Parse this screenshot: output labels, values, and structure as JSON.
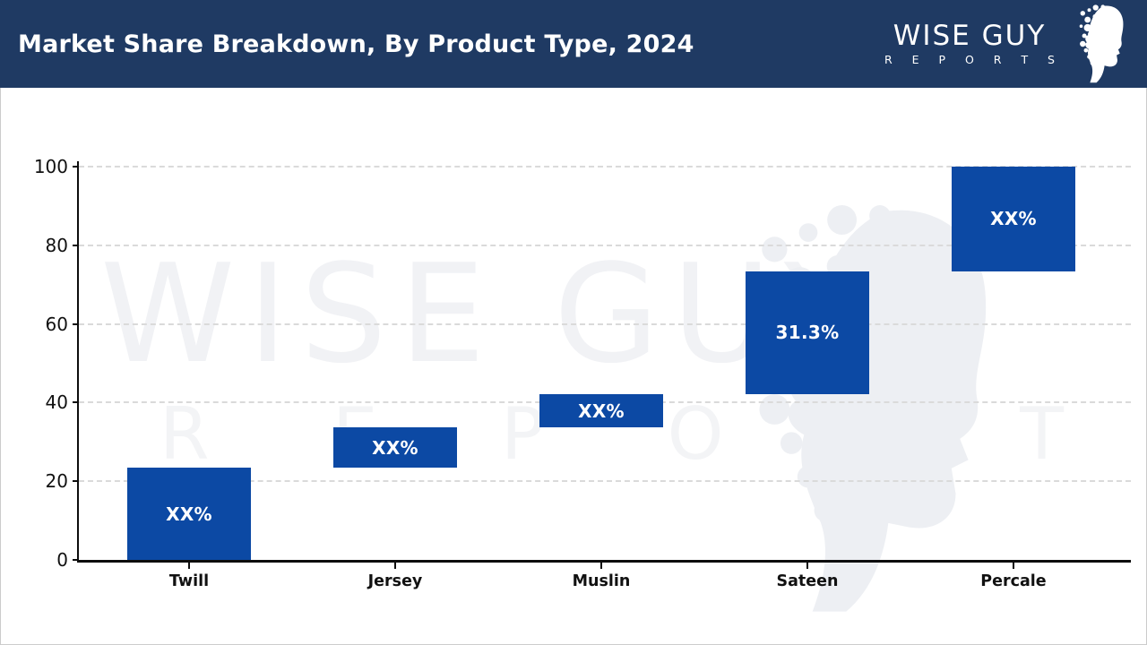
{
  "header": {
    "title": "Market Share Breakdown, By Product Type, 2024",
    "logo": {
      "line1": "WISE GUY",
      "line2": "R E P O R T S"
    }
  },
  "watermark": {
    "line1": "WISE GUY",
    "line2": "R E P O R T S"
  },
  "colors": {
    "header_bg": "#1f3a63",
    "bar_fill": "#0c49a4",
    "bar_label_text": "#ffffff",
    "gridline": "#dadada",
    "axis": "#0d0d0d",
    "watermark": "#f1f2f5"
  },
  "chart_data": {
    "type": "bar",
    "subtype": "waterfall",
    "title": "Market Share Breakdown, By Product Type, 2024",
    "categories": [
      "Twill",
      "Jersey",
      "Muslin",
      "Sateen",
      "Percale"
    ],
    "segments": [
      {
        "category": "Twill",
        "start": 0,
        "end": 23.4,
        "label": "XX%"
      },
      {
        "category": "Jersey",
        "start": 23.4,
        "end": 33.7,
        "label": "XX%"
      },
      {
        "category": "Muslin",
        "start": 33.7,
        "end": 42.1,
        "label": "XX%"
      },
      {
        "category": "Sateen",
        "start": 42.1,
        "end": 73.4,
        "label": "31.3%"
      },
      {
        "category": "Percale",
        "start": 73.4,
        "end": 100,
        "label": "XX%"
      }
    ],
    "xlabel": "",
    "ylabel": "",
    "ylim": [
      0,
      100
    ],
    "yticks": [
      0,
      20,
      40,
      60,
      80,
      100
    ],
    "grid": "horizontal-dashed",
    "legend": "none"
  }
}
